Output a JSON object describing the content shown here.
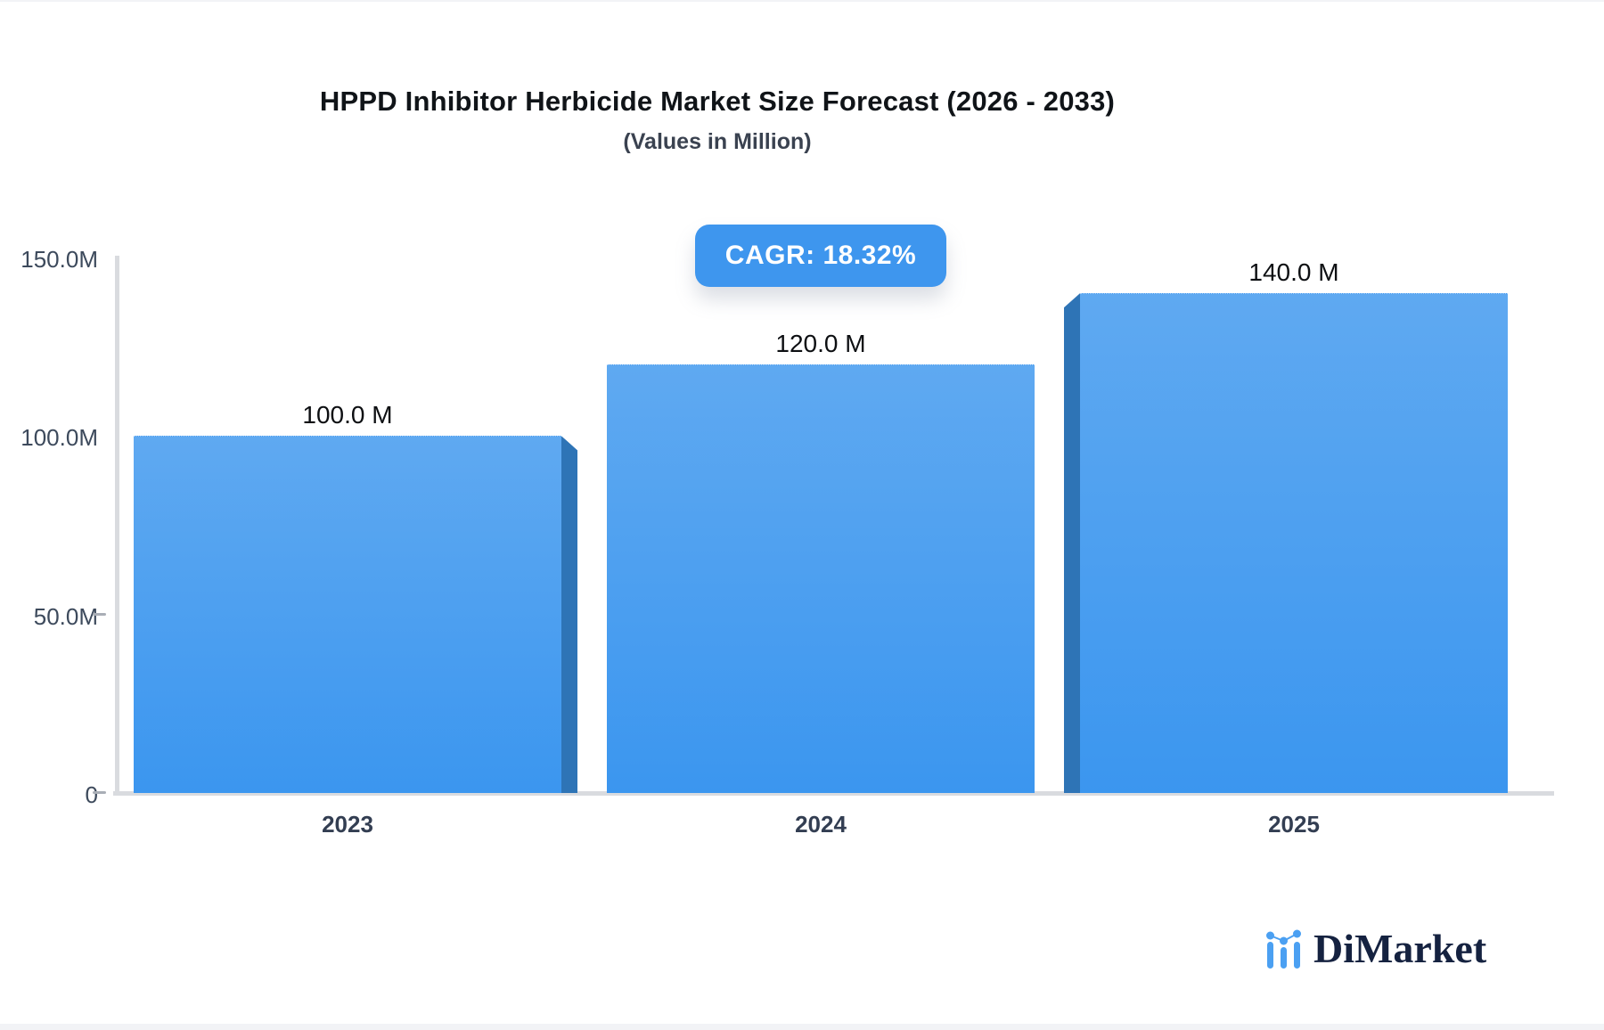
{
  "header": {
    "title": "HPPD Inhibitor Herbicide Market Size Forecast (2026 - 2033)",
    "subtitle": "(Values in Million)"
  },
  "badge": {
    "label": "CAGR: 18.32%"
  },
  "chart_data": {
    "type": "bar",
    "categories": [
      "2023",
      "2024",
      "2025"
    ],
    "values": [
      100,
      120,
      140
    ],
    "value_labels": [
      "100.0 M",
      "120.0 M",
      "140.0 M"
    ],
    "unit": "Million",
    "title": "HPPD Inhibitor Herbicide Market Size Forecast (2026 - 2033)",
    "xlabel": "",
    "ylabel": "",
    "ylim": [
      0,
      150
    ],
    "grid": false,
    "legend": false,
    "yticks": [
      {
        "label": "150.0M",
        "value": 150,
        "dash": false
      },
      {
        "label": "100.0M",
        "value": 100,
        "dash": false
      },
      {
        "label": "50.0M",
        "value": 50,
        "dash": true
      },
      {
        "label": "0",
        "value": 0,
        "dash": true
      }
    ]
  },
  "colors": {
    "bar_top": "#5FA9F1",
    "bar_bottom": "#3B96EF",
    "bar_side": "#2E74B6",
    "badge_bg": "#3E96EE",
    "axis_line": "#D9DBDF",
    "tick_text": "#3D4A5C",
    "category_text": "#333E52",
    "title_text": "#101418",
    "logo_text": "#152240",
    "logo_icon": "#4BA0F2"
  },
  "logo": {
    "text": "DiMarket"
  }
}
